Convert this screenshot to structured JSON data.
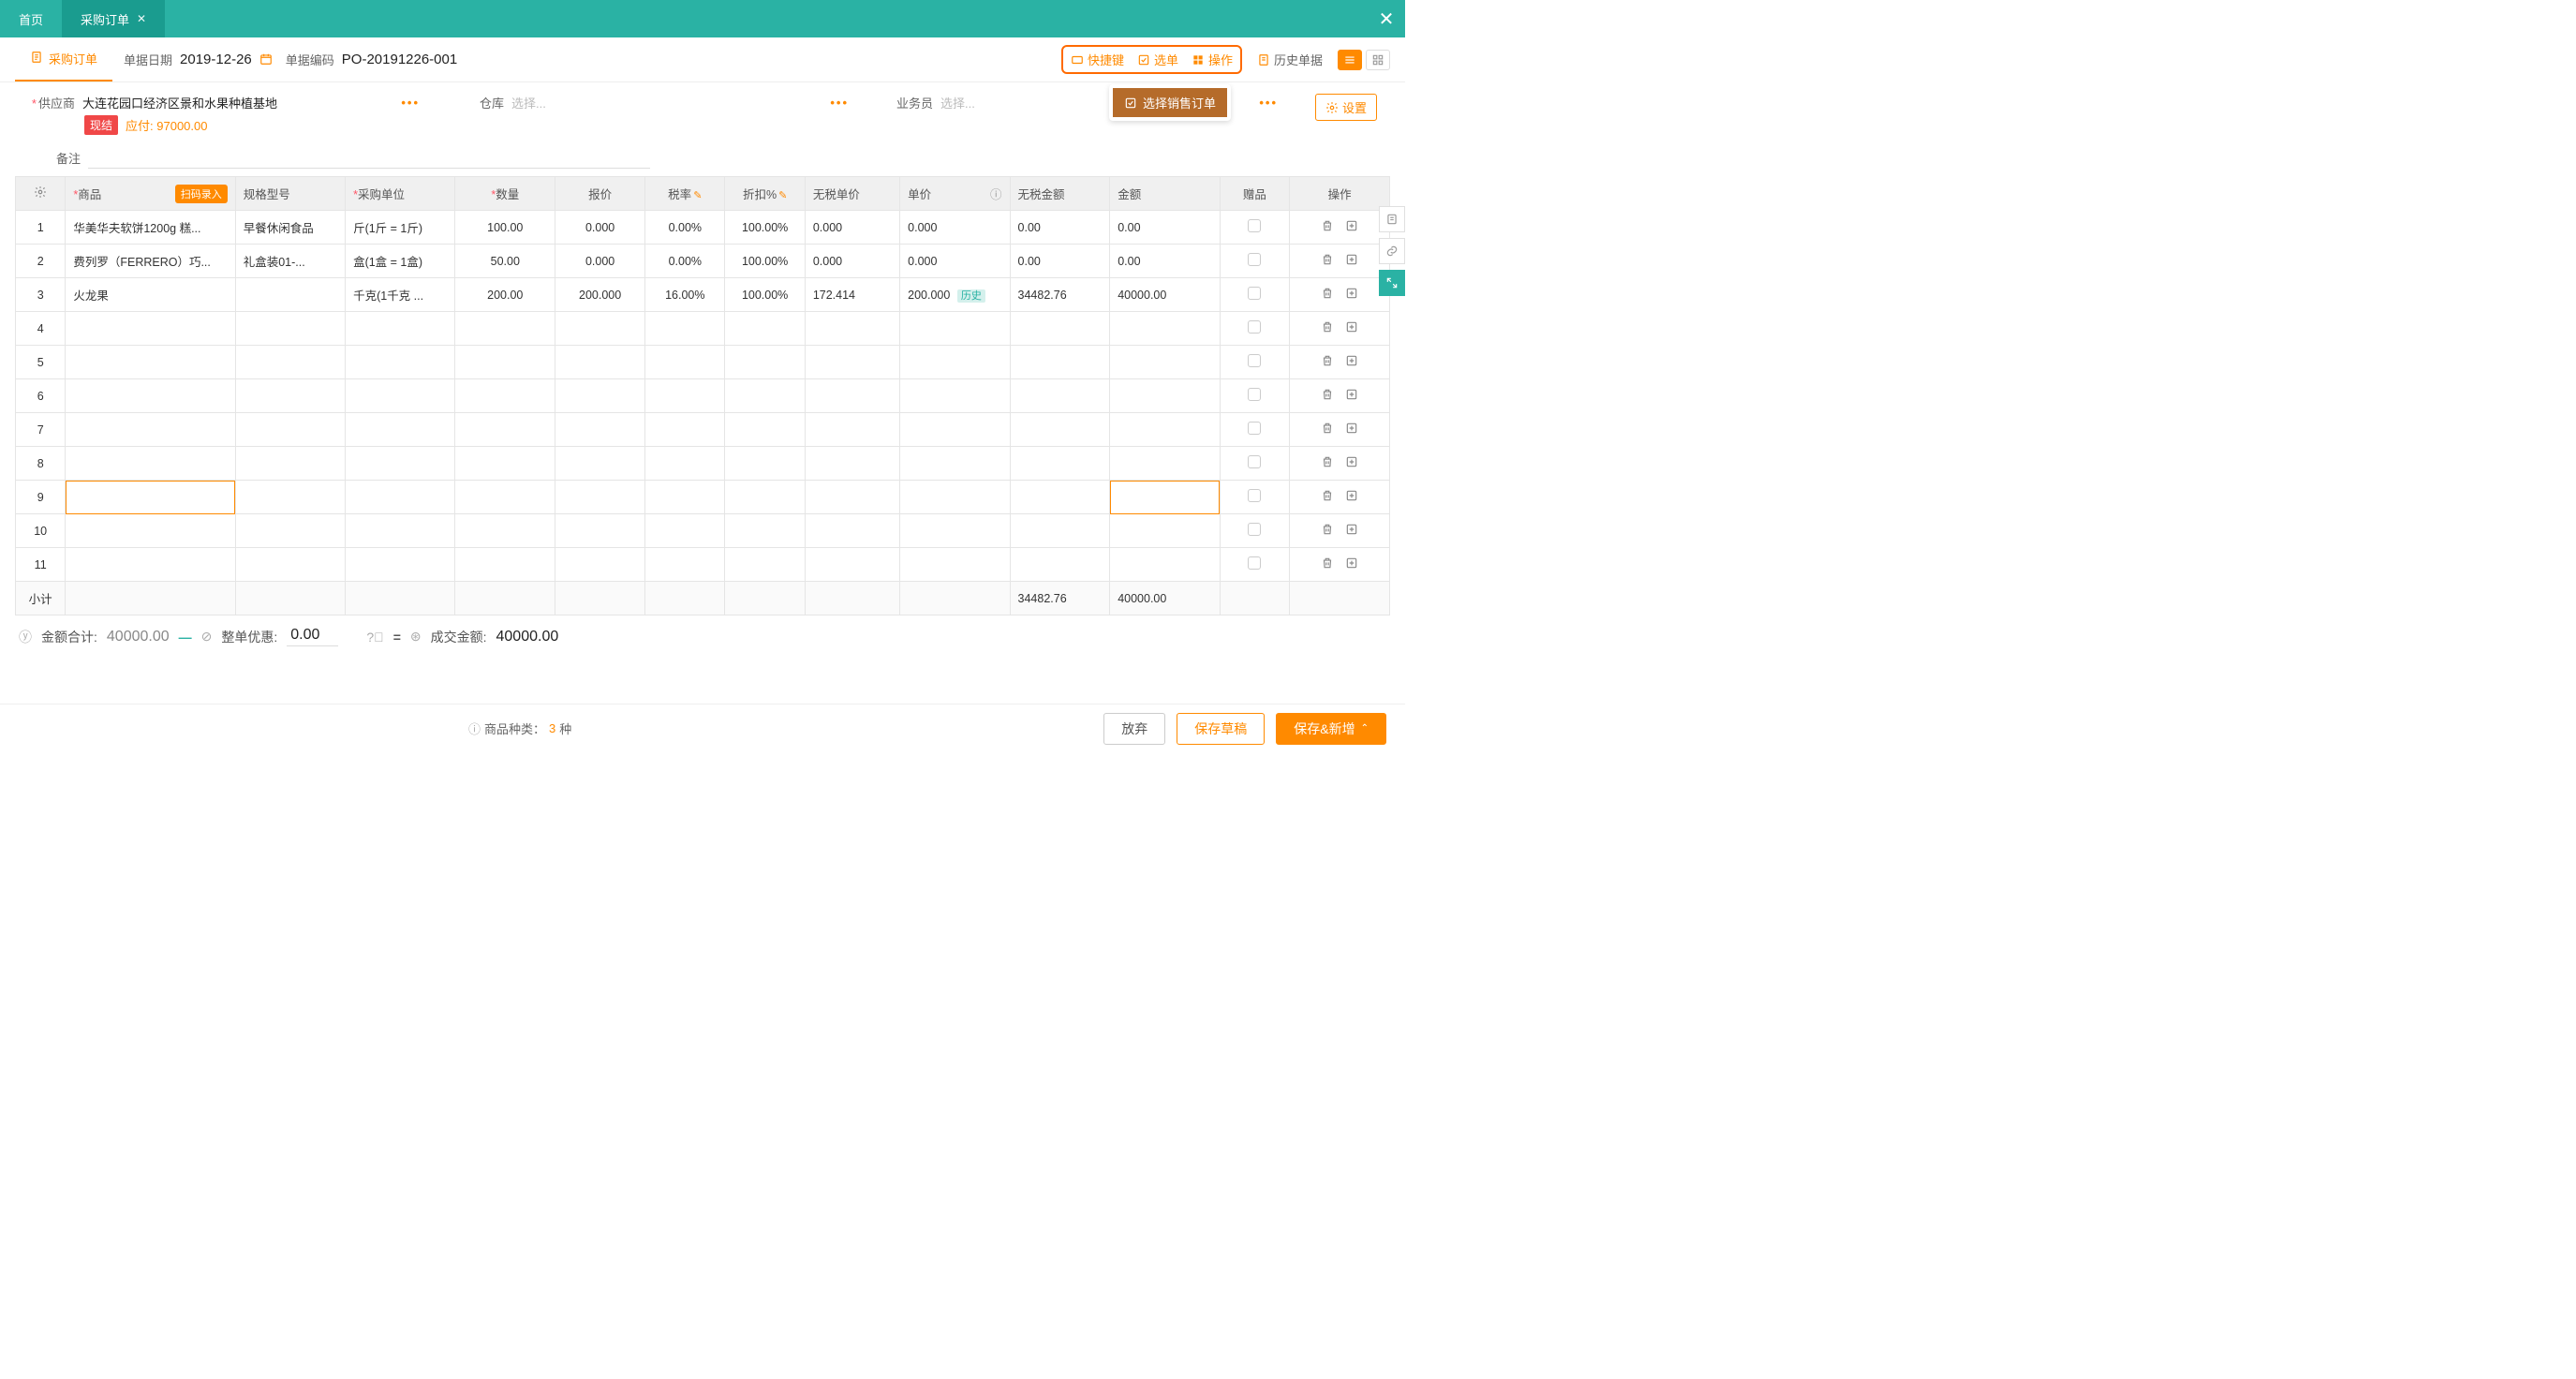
{
  "tabs": {
    "home": "首页",
    "active": "采购订单"
  },
  "formTab": "采购订单",
  "header": {
    "dateLabel": "单据日期",
    "dateValue": "2019-12-26",
    "codeLabel": "单据编码",
    "codeValue": "PO-20191226-001",
    "shortcut": "快捷键",
    "select": "选单",
    "operate": "操作",
    "history": "历史单据",
    "selectSales": "选择销售订单"
  },
  "form": {
    "supplierLabel": "供应商",
    "supplierValue": "大连花园口经济区景和水果种植基地",
    "settlementTag": "现结",
    "payLabel": "应付:",
    "payValue": "97000.00",
    "warehouseLabel": "仓库",
    "salespersonLabel": "业务员",
    "selectPlaceholder": "选择...",
    "memoLabel": "备注",
    "settingsBtn": "设置"
  },
  "table": {
    "cols": {
      "product": "商品",
      "scan": "扫码录入",
      "spec": "规格型号",
      "unit": "采购单位",
      "qty": "数量",
      "quote": "报价",
      "tax": "税率",
      "disc": "折扣%",
      "notaxPrice": "无税单价",
      "price": "单价",
      "notaxAmt": "无税金额",
      "amt": "金额",
      "gift": "赠品",
      "action": "操作"
    },
    "rows": [
      {
        "idx": 1,
        "product": "华美华夫软饼1200g 糕...",
        "spec": "早餐休闲食品",
        "unit": "斤(1斤 = 1斤)",
        "qty": "100.00",
        "quote": "0.000",
        "tax": "0.00%",
        "disc": "100.00%",
        "notaxPrice": "0.000",
        "price": "0.000",
        "notaxAmt": "0.00",
        "amt": "0.00"
      },
      {
        "idx": 2,
        "product": "费列罗（FERRERO）巧...",
        "spec": "礼盒装01-...",
        "unit": "盒(1盒 = 1盒)",
        "qty": "50.00",
        "quote": "0.000",
        "tax": "0.00%",
        "disc": "100.00%",
        "notaxPrice": "0.000",
        "price": "0.000",
        "notaxAmt": "0.00",
        "amt": "0.00"
      },
      {
        "idx": 3,
        "product": "火龙果",
        "spec": "",
        "unit": "千克(1千克 ...",
        "qty": "200.00",
        "quote": "200.000",
        "tax": "16.00%",
        "disc": "100.00%",
        "notaxPrice": "172.414",
        "price": "200.000",
        "priceHist": "历史",
        "notaxAmt": "34482.76",
        "amt": "40000.00"
      }
    ],
    "emptyRows": [
      4,
      5,
      6,
      7,
      8,
      9,
      10,
      11
    ],
    "subtotalLabel": "小计",
    "subtotal": {
      "notaxAmt": "34482.76",
      "amt": "40000.00"
    }
  },
  "totals": {
    "amtLabel": "金额合计:",
    "amtValue": "40000.00",
    "discLabel": "整单优惠:",
    "discValue": "0.00",
    "dealLabel": "成交金额:",
    "dealValue": "40000.00"
  },
  "footer": {
    "kindsLabel": "商品种类：",
    "kindsValue": "3",
    "kindsUnit": "种",
    "abandon": "放弃",
    "draft": "保存草稿",
    "save": "保存&新增"
  }
}
